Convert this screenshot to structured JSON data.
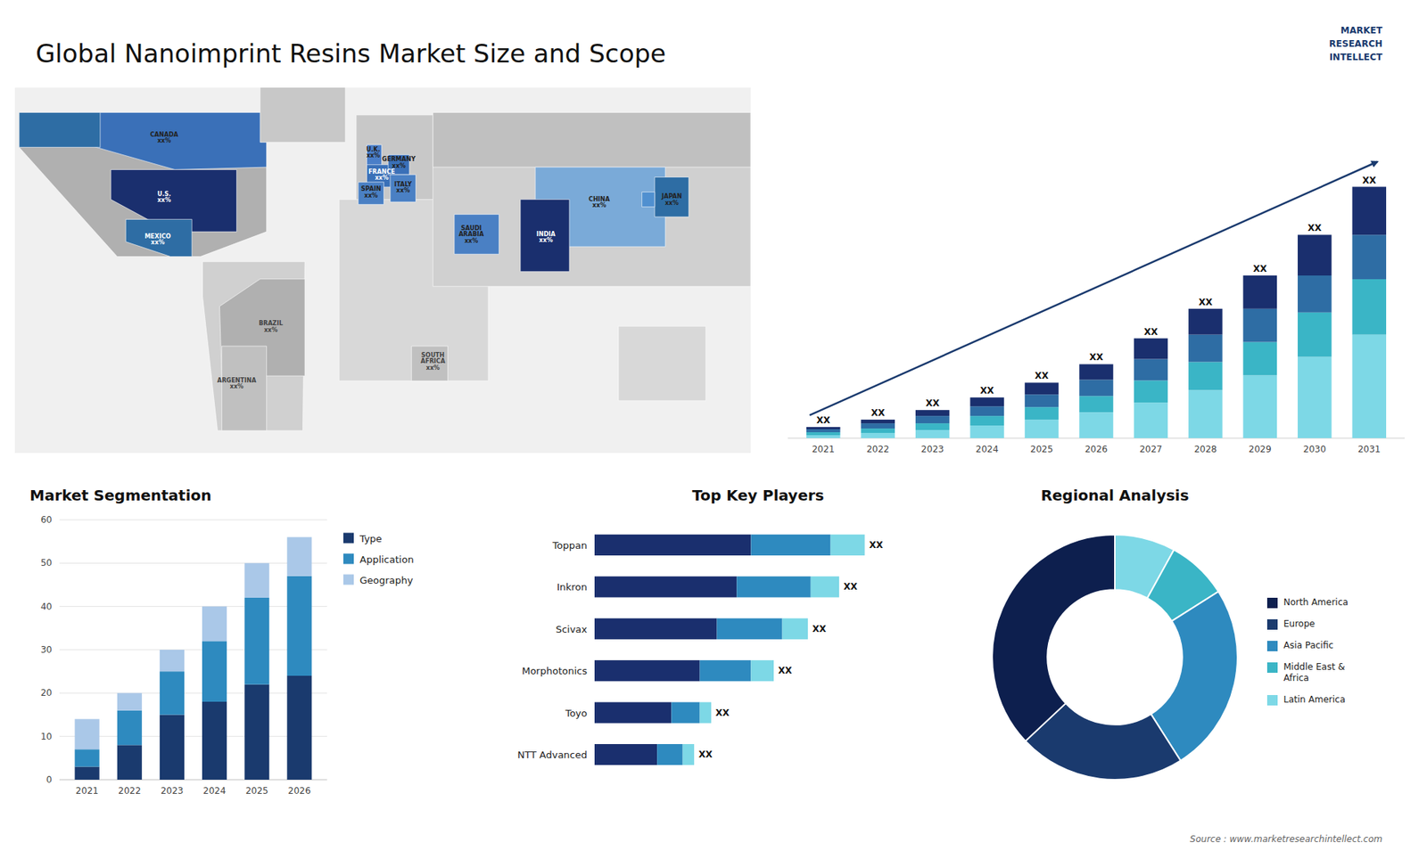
{
  "title": "Global  Nanoimprint Resins Market Size and Scope",
  "annotations": [
    "Source : www.marketresearchintellect.com",
    "MARKET\nRESEARCH\nINTELLECT"
  ],
  "chart_data": [
    {
      "type": "map",
      "categories": [
        "CANADA\nxx%",
        "U.S.\nxx%",
        "MEXICO\nxx%",
        "BRAZIL\nxx%",
        "ARGENTINA\nxx%",
        "U.K.\nxx%",
        "FRANCE\nxx%",
        "SPAIN\nxx%",
        "GERMANY\nxx%",
        "ITALY\nxx%",
        "SAUDI\nARABIA\nxx%",
        "SOUTH\nAFRICA\nxx%",
        "CHINA\nxx%",
        "JAPAN\nxx%",
        "INDIA\nxx%"
      ],
      "x": [
        -100,
        -100,
        -103,
        -50,
        -66,
        -2,
        2,
        -3,
        10,
        12,
        44,
        26,
        104,
        138,
        79
      ],
      "values": [
        62,
        38,
        21,
        -14,
        -37,
        56,
        47,
        40,
        52,
        42,
        23,
        -28,
        36,
        37,
        22
      ],
      "colors": [
        "#222222",
        "#ffffff",
        "#ffffff",
        "#444444",
        "#444444",
        "#222222",
        "#ffffff",
        "#222222",
        "#222222",
        "#222222",
        "#222222",
        "#444444",
        "#222222",
        "#222222",
        "#ffffff"
      ],
      "xlim": [
        -170,
        175
      ],
      "ylim": [
        -65,
        82
      ],
      "tick_labels": false
    },
    {
      "type": "bar",
      "stacked": true,
      "tick_labels": "x",
      "categories": [
        "2021",
        "2022",
        "2023",
        "2024",
        "2025",
        "2026",
        "2027",
        "2028",
        "2029",
        "2030",
        "2031"
      ],
      "ylim": [
        0,
        44.2
      ],
      "series": [
        {
          "color": "#7dd8e6",
          "values": [
            0.4,
            0.7,
            1.1,
            1.7,
            2.5,
            3.5,
            4.8,
            6.5,
            8.5,
            11.0,
            14.0
          ]
        },
        {
          "color": "#3ab5c6",
          "values": [
            0.4,
            0.6,
            0.9,
            1.3,
            1.7,
            2.2,
            3.0,
            3.8,
            4.5,
            6.0,
            7.5
          ]
        },
        {
          "color": "#2e6da4",
          "values": [
            0.4,
            0.7,
            1.0,
            1.3,
            1.7,
            2.2,
            2.9,
            3.7,
            4.5,
            5.0,
            6.0
          ]
        },
        {
          "color": "#1a2f6e",
          "values": [
            0.3,
            0.5,
            0.8,
            1.2,
            1.6,
            2.1,
            2.8,
            3.5,
            4.5,
            5.5,
            6.5
          ],
          "value_labels": [
            "XX",
            "XX",
            "XX",
            "XX",
            "XX",
            "XX",
            "XX",
            "XX",
            "XX",
            "XX",
            "XX"
          ]
        }
      ]
    },
    {
      "type": "bar",
      "stacked": true,
      "title": "Market Segmentation",
      "grid": true,
      "legend": "right",
      "categories": [
        "2021",
        "2022",
        "2023",
        "2024",
        "2025",
        "2026"
      ],
      "ylim": [
        0,
        60
      ],
      "yticks": [
        0,
        10,
        20,
        30,
        40,
        50,
        60
      ],
      "series": [
        {
          "name": "Type",
          "color": "#1a3a6e",
          "values": [
            3,
            8,
            15,
            18,
            22,
            24
          ]
        },
        {
          "name": "Application",
          "color": "#2e8abf",
          "values": [
            4,
            8,
            10,
            14,
            20,
            23
          ]
        },
        {
          "name": "Geography",
          "color": "#aac8e8",
          "values": [
            7,
            4,
            5,
            8,
            8,
            9
          ]
        }
      ]
    },
    {
      "type": "bar",
      "orientation": "horizontal",
      "stacked": true,
      "title": "Top Key Players",
      "tick_labels": "y",
      "categories": [
        "Toppan",
        "Inkron",
        "Scivax",
        "Morphotonics",
        "Toyo",
        "NTT Advanced"
      ],
      "xlim": [
        0,
        1.15
      ],
      "series": [
        {
          "color": "#1a2f6e",
          "values": [
            0.55,
            0.5,
            0.43,
            0.37,
            0.27,
            0.22
          ]
        },
        {
          "color": "#2e8abf",
          "values": [
            0.28,
            0.26,
            0.23,
            0.18,
            0.1,
            0.09
          ]
        },
        {
          "color": "#7dd8e6",
          "values": [
            0.12,
            0.1,
            0.09,
            0.08,
            0.04,
            0.04
          ],
          "value_labels": [
            "XX",
            "XX",
            "XX",
            "XX",
            "XX",
            "XX"
          ]
        }
      ]
    },
    {
      "type": "donut",
      "title": "Regional Analysis",
      "legend": "right",
      "categories": [
        "Latin America",
        "Middle East &\nAfrica",
        "Asia Pacific",
        "Europe",
        "North America"
      ],
      "values": [
        8,
        8,
        25,
        22,
        37
      ],
      "colors": [
        "#7dd8e6",
        "#3ab5c6",
        "#2e8abf",
        "#1a3a6e",
        "#0d1f4e"
      ]
    }
  ]
}
